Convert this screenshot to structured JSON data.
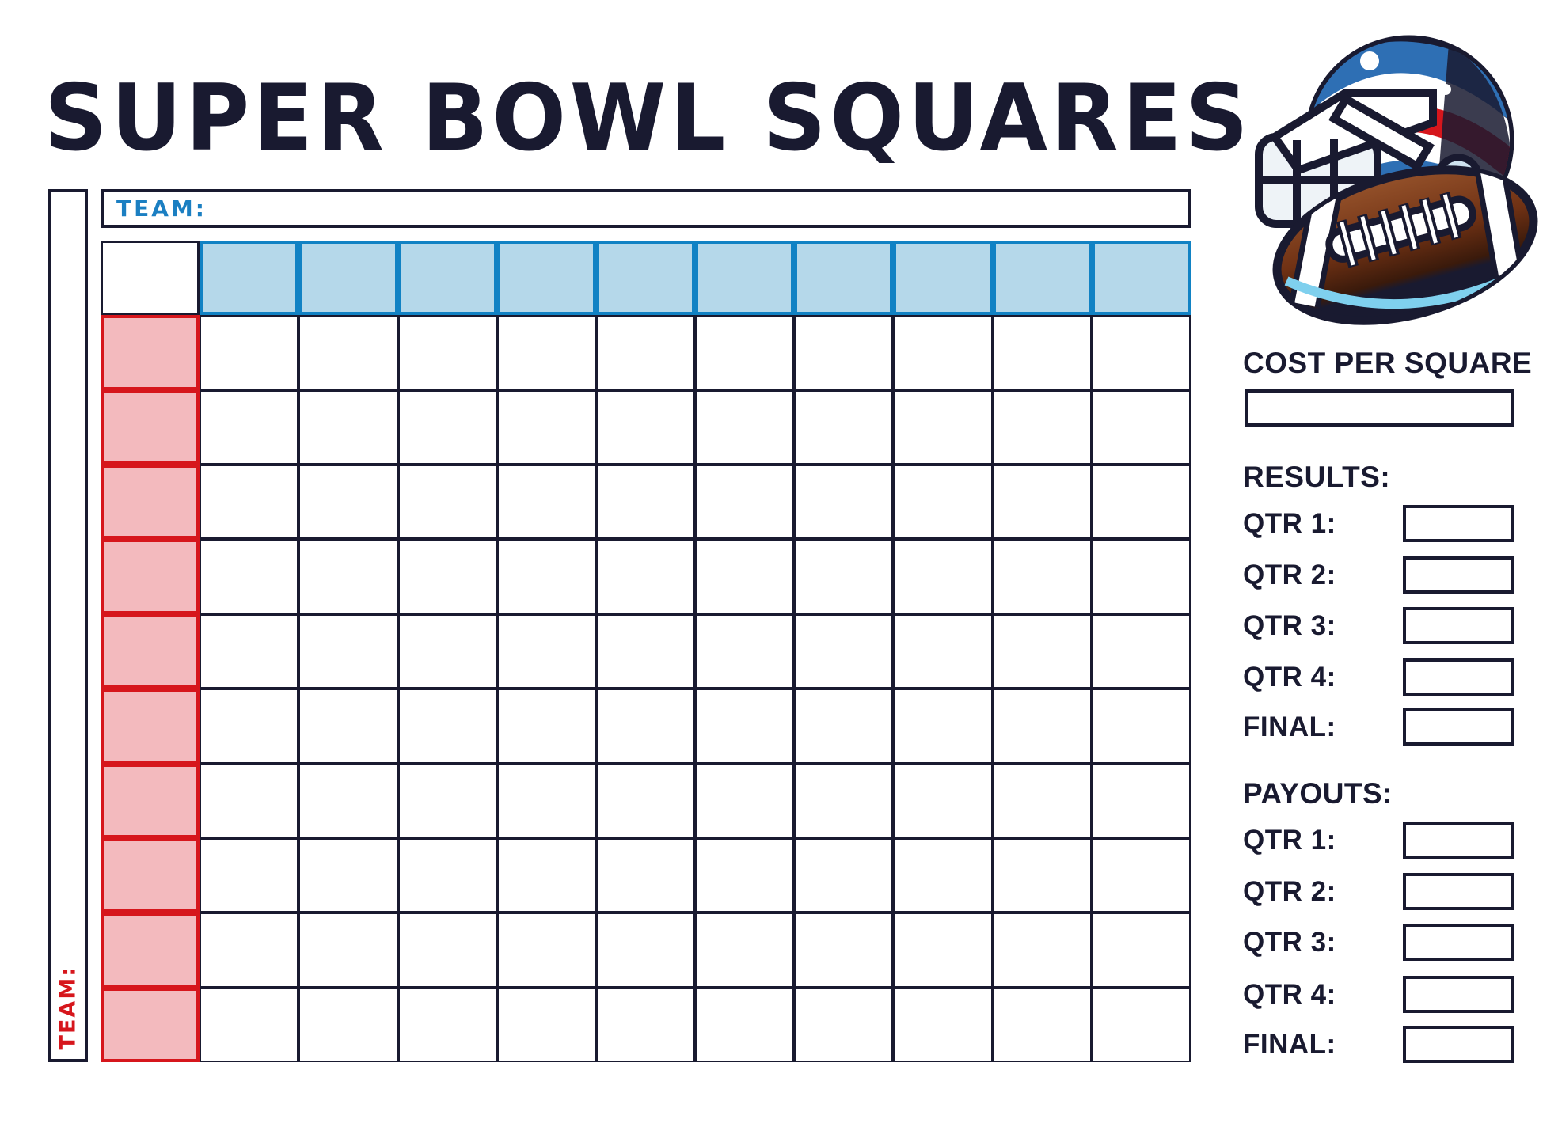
{
  "title": "SUPER BOWL SQUARES",
  "logo": {
    "name": "football-helmet-and-ball"
  },
  "grid": {
    "top_team_label": "TEAM:",
    "left_team_label": "TEAM:",
    "columns": 10,
    "rows": 10,
    "colors": {
      "outline": "#191a30",
      "column_header_fill": "#b5d8ea",
      "column_header_border": "#1182c4",
      "row_header_fill": "#f3babe",
      "row_header_border": "#d6161c",
      "top_team_label_color": "#1b7fc2",
      "left_team_label_color": "#d6161c"
    }
  },
  "sidebar": {
    "cost_per_square": {
      "heading": "COST PER SQUARE",
      "value": ""
    },
    "results": {
      "heading": "RESULTS:",
      "rows": [
        {
          "label": "QTR 1:",
          "value": ""
        },
        {
          "label": "QTR 2:",
          "value": ""
        },
        {
          "label": "QTR 3:",
          "value": ""
        },
        {
          "label": "QTR 4:",
          "value": ""
        },
        {
          "label": "FINAL:",
          "value": ""
        }
      ]
    },
    "payouts": {
      "heading": "PAYOUTS:",
      "rows": [
        {
          "label": "QTR 1:",
          "value": ""
        },
        {
          "label": "QTR 2:",
          "value": ""
        },
        {
          "label": "QTR 3:",
          "value": ""
        },
        {
          "label": "QTR 4:",
          "value": ""
        },
        {
          "label": "FINAL:",
          "value": ""
        }
      ]
    }
  }
}
